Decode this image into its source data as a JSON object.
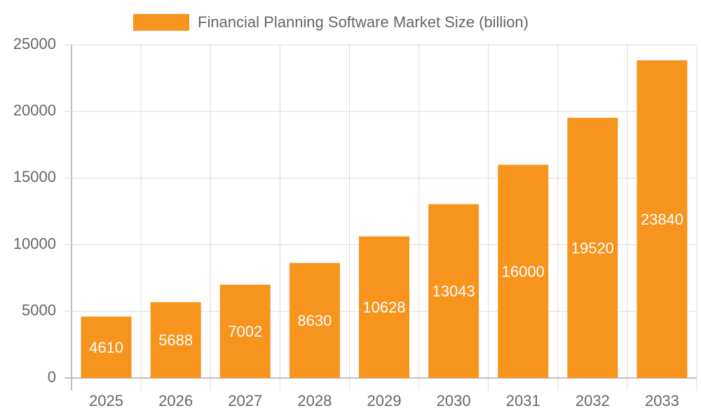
{
  "chart_data": {
    "type": "bar",
    "categories": [
      "2025",
      "2026",
      "2027",
      "2028",
      "2029",
      "2030",
      "2031",
      "2032",
      "2033"
    ],
    "series": [
      {
        "name": "Financial Planning Software Market Size (billion)",
        "color": "#f7941d",
        "values": [
          4610,
          5688,
          7002,
          8630,
          10628,
          13043,
          16000,
          19520,
          23840
        ]
      }
    ],
    "ylim": [
      0,
      25000
    ],
    "yticks": [
      0,
      5000,
      10000,
      15000,
      20000,
      25000
    ],
    "grid": true,
    "legend": "top",
    "data_labels": true
  }
}
